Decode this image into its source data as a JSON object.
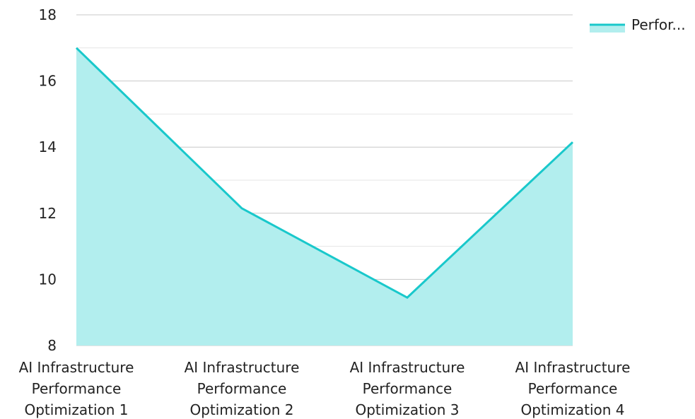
{
  "chart_data": {
    "type": "area",
    "categories": [
      [
        "AI Infrastructure",
        "Performance",
        "Optimization 1"
      ],
      [
        "AI Infrastructure",
        "Performance",
        "Optimization 2"
      ],
      [
        "AI Infrastructure",
        "Performance",
        "Optimization 3"
      ],
      [
        "AI Infrastructure",
        "Performance",
        "Optimization 4"
      ]
    ],
    "series": [
      {
        "name": "Perfor...",
        "values": [
          17,
          12.15,
          9.45,
          14.15
        ],
        "line_color": "#19c8cb",
        "fill_color": "#b2eeee"
      }
    ],
    "ylim": [
      8,
      18
    ],
    "yticks": [
      8,
      10,
      12,
      14,
      16,
      18
    ],
    "grid": true,
    "grid_color": "#c8c8c8",
    "legend_position": "top-right"
  }
}
